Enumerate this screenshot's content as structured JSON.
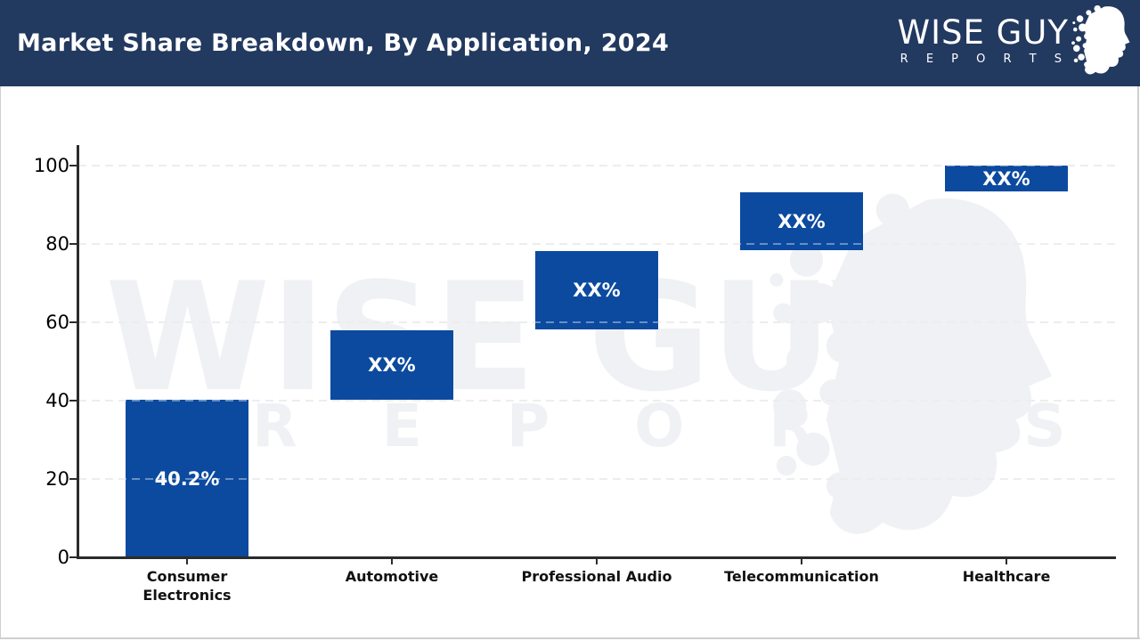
{
  "header": {
    "title": "Market Share Breakdown, By Application, 2024",
    "logo": {
      "line1": "WISE GUY",
      "line2": "R E P O R T S"
    }
  },
  "colors": {
    "header_bg": "#223960",
    "bar": "#0b4a9f",
    "grid": "#e2e2e2",
    "axis": "#2b2b2b",
    "watermark": "#f0f1f4",
    "bar_label_text": "#ffffff",
    "title_text": "#ffffff"
  },
  "chart_data": {
    "type": "bar",
    "subtype": "waterfall",
    "title": "Market Share Breakdown, By Application, 2024",
    "categories": [
      "Consumer Electronics",
      "Automotive",
      "Professional Audio",
      "Telecommunication",
      "Healthcare"
    ],
    "segments": [
      {
        "category": "Consumer Electronics",
        "bottom": 0,
        "top": 40.2,
        "label": "40.2%"
      },
      {
        "category": "Automotive",
        "bottom": 40.2,
        "top": 58.0,
        "label": "XX%"
      },
      {
        "category": "Professional Audio",
        "bottom": 58.2,
        "top": 78.2,
        "label": "XX%"
      },
      {
        "category": "Telecommunication",
        "bottom": 78.3,
        "top": 93.2,
        "label": "XX%"
      },
      {
        "category": "Healthcare",
        "bottom": 93.3,
        "top": 100,
        "label": "XX%"
      }
    ],
    "yticks": [
      0,
      20,
      40,
      60,
      80,
      100
    ],
    "ylim": [
      0,
      105
    ],
    "xlabel": "",
    "ylabel": "",
    "grid": "horizontal-dashed",
    "legend": "none",
    "watermark": {
      "line1": "WISE GUY",
      "line2": "R E P O R T S"
    }
  }
}
